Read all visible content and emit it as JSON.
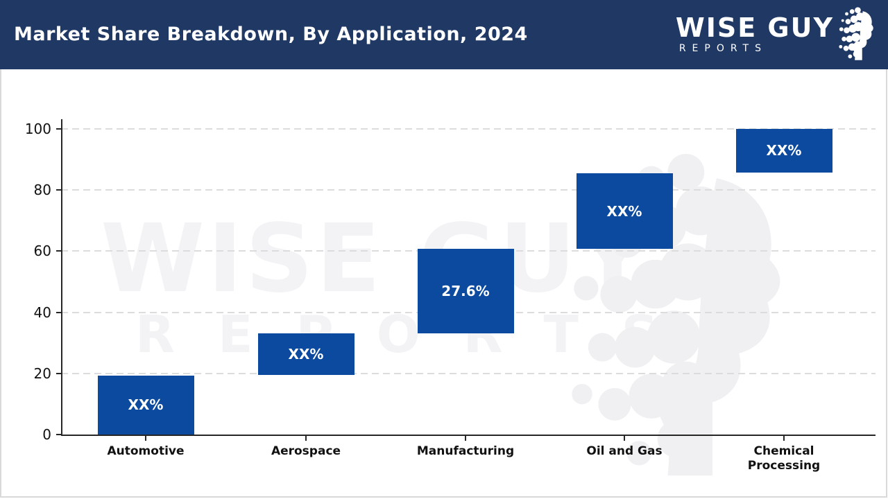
{
  "header": {
    "title": "Market Share Breakdown, By Application, 2024",
    "logo_name": "WISE GUY",
    "logo_sub": "REPORTS"
  },
  "watermark": {
    "line1": "WISE GUY",
    "line2": "REPORTS"
  },
  "colors": {
    "header_bg": "#1f3864",
    "bar": "#0b4a9e",
    "bar_label": "#ffffff",
    "grid": "#dcdcdc",
    "axis": "#262626",
    "tick_text": "#111111",
    "watermark": "#f3f3f6",
    "watermark_head": "#f0f0f3",
    "frame": "#d9d9d9"
  },
  "chart_data": {
    "type": "bar",
    "subtype": "floating-segment-waterfall",
    "title": "Market Share Breakdown, By Application, 2024",
    "categories": [
      "Automotive",
      "Aerospace",
      "Manufacturing",
      "Oil and Gas",
      "Chemical Processing"
    ],
    "series": [
      {
        "name": "Market share (%)",
        "segments": [
          {
            "category": "Automotive",
            "from": 0,
            "to": 19.3,
            "label": "XX%"
          },
          {
            "category": "Aerospace",
            "from": 19.5,
            "to": 33.2,
            "label": "XX%"
          },
          {
            "category": "Manufacturing",
            "from": 33.2,
            "to": 60.8,
            "label": "27.6%"
          },
          {
            "category": "Oil and Gas",
            "from": 60.7,
            "to": 85.5,
            "label": "XX%"
          },
          {
            "category": "Chemical Processing",
            "from": 85.8,
            "to": 100,
            "label": "XX%"
          }
        ]
      }
    ],
    "xlabel": "",
    "ylabel": "",
    "ylim": [
      0,
      100
    ],
    "yticks": [
      0,
      20,
      40,
      60,
      80,
      100
    ],
    "grid": "horizontal-dashed",
    "legend": "none"
  }
}
